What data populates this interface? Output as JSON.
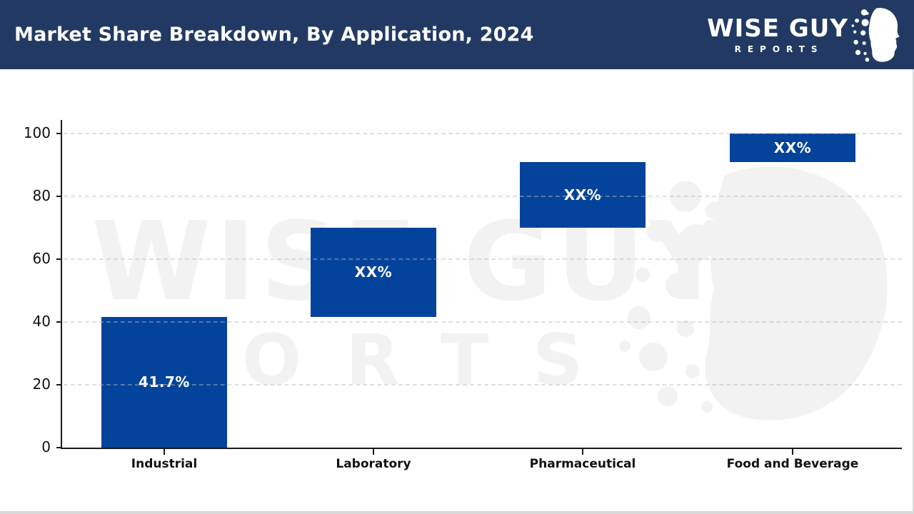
{
  "header": {
    "title": "Market Share Breakdown, By Application, 2024",
    "bg_color": "#223A63",
    "logo": {
      "line1": "WISE GUY",
      "line2": "REPORTS"
    }
  },
  "watermark": {
    "line1": "WISE GUY",
    "line2": "PORTS"
  },
  "chart_data": {
    "type": "bar",
    "subtype": "waterfall",
    "title": "Market Share Breakdown, By Application, 2024",
    "categories": [
      "Industrial",
      "Laboratory",
      "Pharmaceutical",
      "Food and Beverage"
    ],
    "segments": [
      {
        "category": "Industrial",
        "label": "41.7%",
        "start": 0,
        "end": 41.7
      },
      {
        "category": "Laboratory",
        "label": "XX%",
        "start": 41.7,
        "end": 70
      },
      {
        "category": "Pharmaceutical",
        "label": "XX%",
        "start": 70,
        "end": 90.8
      },
      {
        "category": "Food and Beverage",
        "label": "XX%",
        "start": 90.8,
        "end": 100
      }
    ],
    "yticks": [
      0,
      20,
      40,
      60,
      80,
      100
    ],
    "ylim": [
      0,
      105
    ],
    "xlabel": "",
    "ylabel": "",
    "bar_color": "#04439B",
    "grid": "horizontal-dashed",
    "legend": "none"
  }
}
